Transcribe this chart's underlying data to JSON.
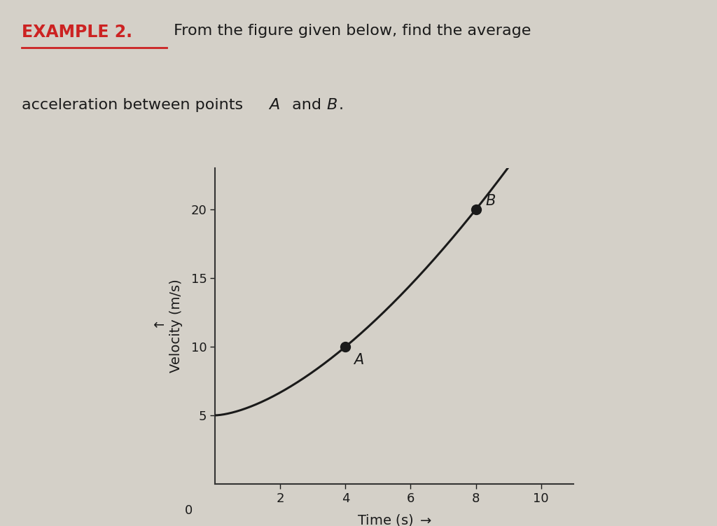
{
  "bg_color": "#d4d0c8",
  "point_A": [
    4,
    10
  ],
  "point_B": [
    8,
    20
  ],
  "xlabel": "Time (s)",
  "ylabel": "Velocity (m/s)",
  "xlim": [
    0,
    11
  ],
  "ylim": [
    0,
    23
  ],
  "xticks": [
    2,
    4,
    6,
    8,
    10
  ],
  "yticks": [
    5,
    10,
    15,
    20
  ],
  "curve_color": "#1a1a1a",
  "point_color": "#1a1a1a",
  "text_color": "#1a1a1a",
  "example_color": "#cc2222",
  "figsize": [
    10.24,
    7.51
  ],
  "dpi": 100
}
